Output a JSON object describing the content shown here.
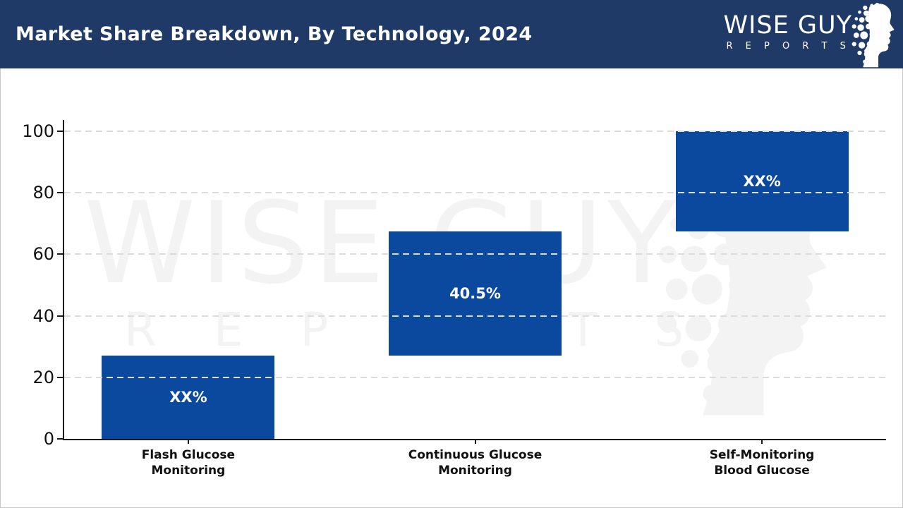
{
  "header": {
    "title": "Market Share Breakdown, By Technology, 2024",
    "brand": {
      "name": "WISE GUY",
      "subtitle": "R E P O R T S"
    }
  },
  "watermark": {
    "name": "WISE GUY",
    "subtitle": "R E P O R T S"
  },
  "chart_data": {
    "type": "bar",
    "subtype": "floating-segment-bar",
    "title": "Market Share Breakdown, By Technology, 2024",
    "xlabel": "",
    "ylabel": "",
    "ylim": [
      0,
      100
    ],
    "yticks": [
      0,
      20,
      40,
      60,
      80,
      100
    ],
    "grid": "horizontal-dashed",
    "legend": "none",
    "categories": [
      "Flash Glucose\nMonitoring",
      "Continuous Glucose\nMonitoring",
      "Self-Monitoring\nBlood Glucose"
    ],
    "series": [
      {
        "name": "Market share (%)",
        "segments": [
          {
            "category": "Flash Glucose Monitoring",
            "start": 0,
            "end": 27,
            "label": "XX%"
          },
          {
            "category": "Continuous Glucose Monitoring",
            "start": 27,
            "end": 67.5,
            "label": "40.5%"
          },
          {
            "category": "Self-Monitoring Blood Glucose",
            "start": 67.5,
            "end": 100,
            "label": "XX%"
          }
        ]
      }
    ],
    "colors": {
      "bar": "#0a499e",
      "bar_label": "#ffffff",
      "grid": "#dcdcdc",
      "axis": "#1a1a1a",
      "header_bg": "#203a68",
      "watermark": "#f3f3f3"
    }
  }
}
